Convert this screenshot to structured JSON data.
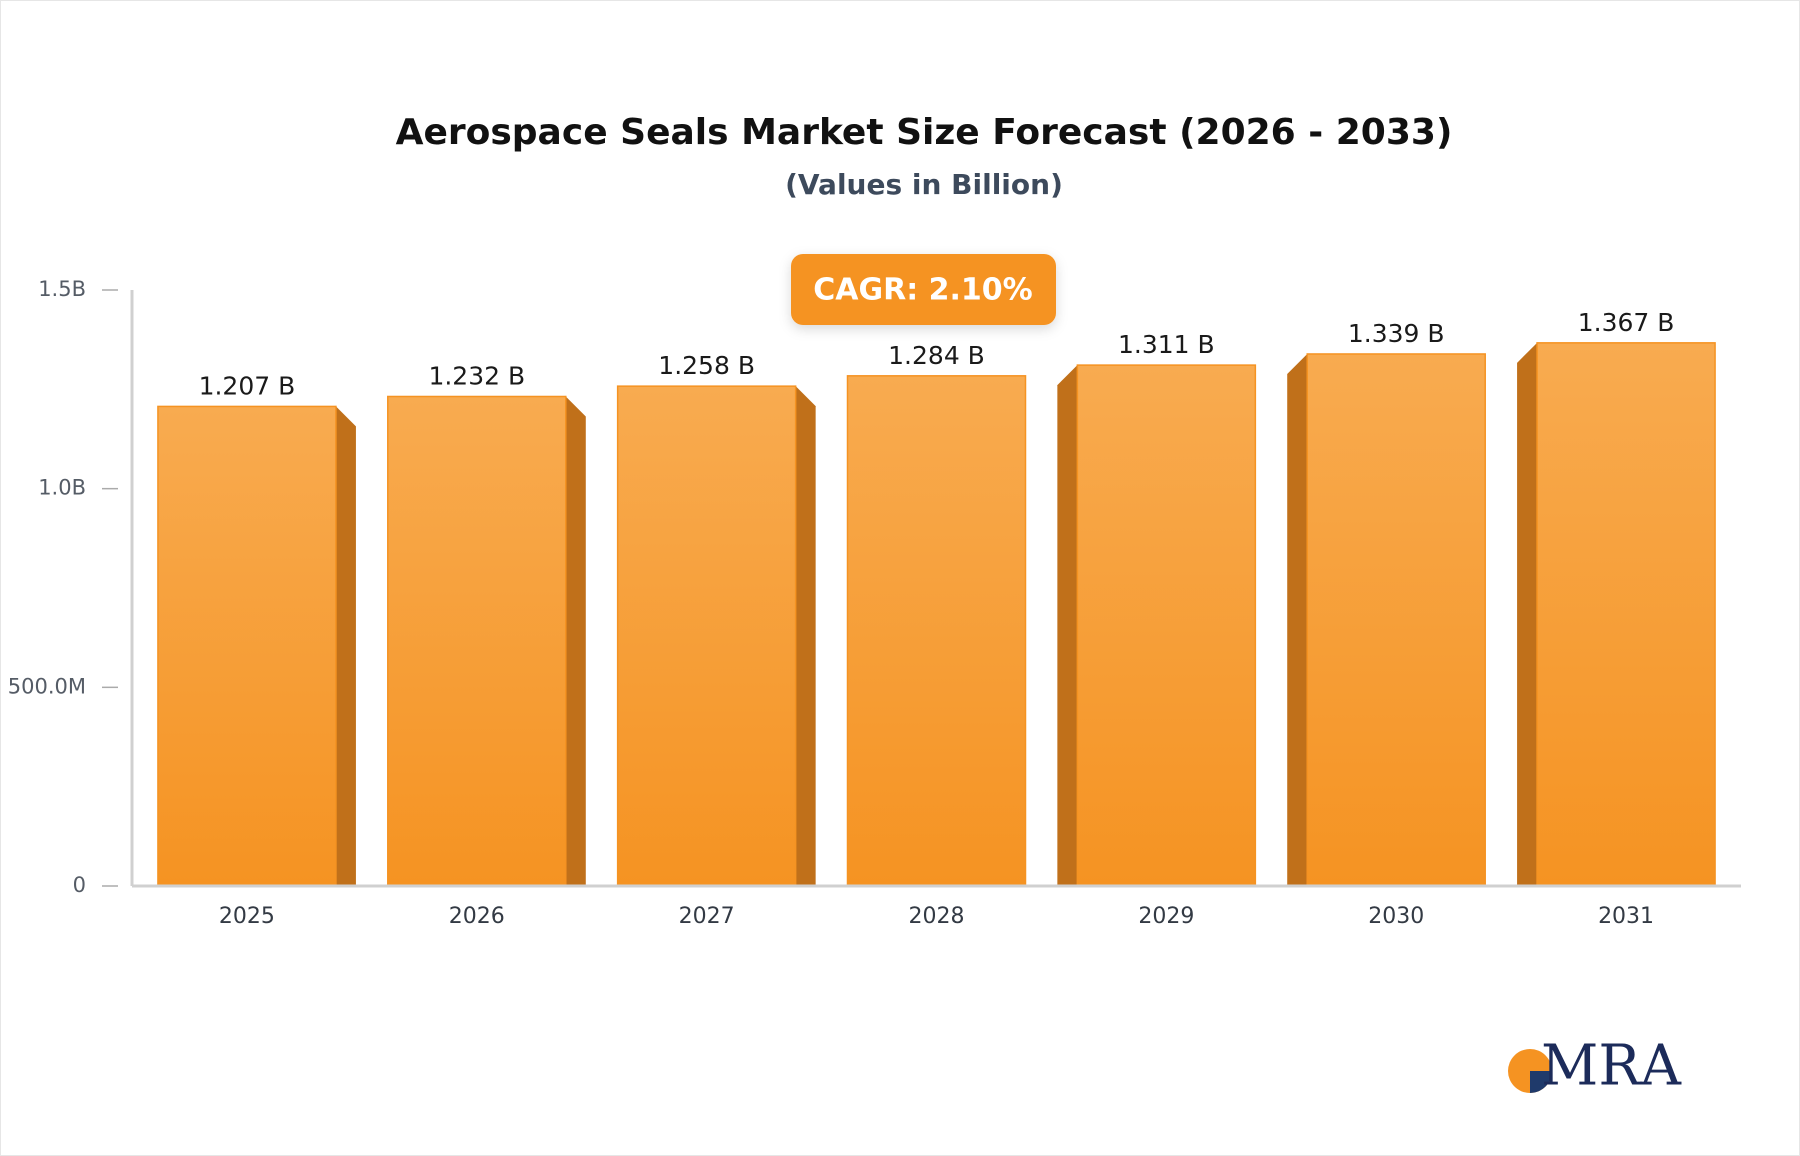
{
  "chart_data": {
    "type": "bar",
    "title": "Aerospace Seals Market Size Forecast (2026 - 2033)",
    "subtitle": "(Values in Billion)",
    "annotation": "CAGR: 2.10%",
    "logo": "MRA",
    "categories": [
      "2025",
      "2026",
      "2027",
      "2028",
      "2029",
      "2030",
      "2031"
    ],
    "values": [
      1.207,
      1.232,
      1.258,
      1.284,
      1.311,
      1.339,
      1.367
    ],
    "value_labels": [
      "1.207 B",
      "1.232 B",
      "1.258 B",
      "1.284 B",
      "1.311 B",
      "1.339 B",
      "1.367 B"
    ],
    "color": "#f59322",
    "ylim": [
      0,
      1.5
    ],
    "yticks": [
      0,
      {
        "value": 0.5,
        "label": "500.0M"
      },
      {
        "value": 1,
        "label": "1.0B"
      },
      {
        "value": 1.5,
        "label": "1.5B"
      }
    ]
  }
}
